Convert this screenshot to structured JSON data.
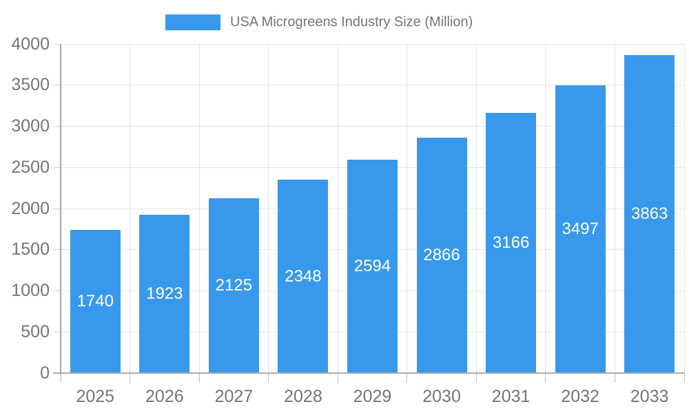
{
  "legend": {
    "label": "USA Microgreens Industry Size (Million)"
  },
  "chart_data": {
    "type": "bar",
    "title": "USA Microgreens Industry Size (Million)",
    "categories": [
      "2025",
      "2026",
      "2027",
      "2028",
      "2029",
      "2030",
      "2031",
      "2032",
      "2033"
    ],
    "values": [
      1740,
      1923,
      2125,
      2348,
      2594,
      2866,
      3166,
      3497,
      3863
    ],
    "series_name": "USA Microgreens Industry Size (Million)",
    "xlabel": "",
    "ylabel": "",
    "ylim": [
      0,
      4000
    ],
    "ytick_step": 500,
    "yticks": [
      0,
      500,
      1000,
      1500,
      2000,
      2500,
      3000,
      3500,
      4000
    ],
    "grid": true,
    "legend_position": "top",
    "value_labels": "inside-center",
    "colors": {
      "bar": "#3899EC",
      "value_label": "#FFFFFF",
      "axis_label": "#757575",
      "legend_label": "#757575",
      "gridline": "#E6E6E6",
      "axis_line": "#A6A6A6",
      "background": "#FFFFFF"
    }
  }
}
